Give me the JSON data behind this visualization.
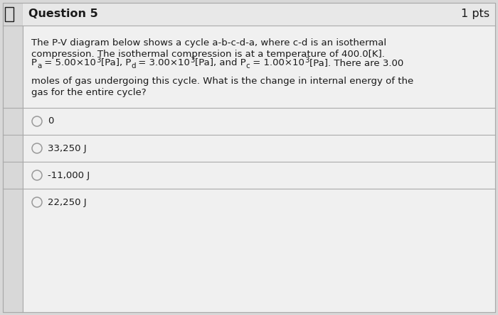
{
  "title": "Question 5",
  "pts": "1 pts",
  "bg_color": "#d8d8d8",
  "card_color": "#f0f0f0",
  "header_bg": "#e8e8e8",
  "border_color": "#aaaaaa",
  "text_color": "#1a1a1a",
  "divider_color": "#aaaaaa",
  "circle_color": "#999999",
  "para1_line1": "The P-V diagram below shows a cycle a-b-c-d-a, where c-d is an isothermal",
  "para1_line2": "compression. The isothermal compression is at a temperature of 400.0[K].",
  "para2_line2": "moles of gas undergoing this cycle. What is the change in internal energy of the",
  "para2_line3": "gas for the entire cycle?",
  "options": [
    "0",
    "33,250 J",
    "-11,000 J",
    "22,250 J"
  ],
  "title_fontsize": 11.5,
  "body_fontsize": 9.5,
  "option_fontsize": 9.5,
  "fig_width": 7.0,
  "fig_height": 4.44,
  "dpi": 100
}
